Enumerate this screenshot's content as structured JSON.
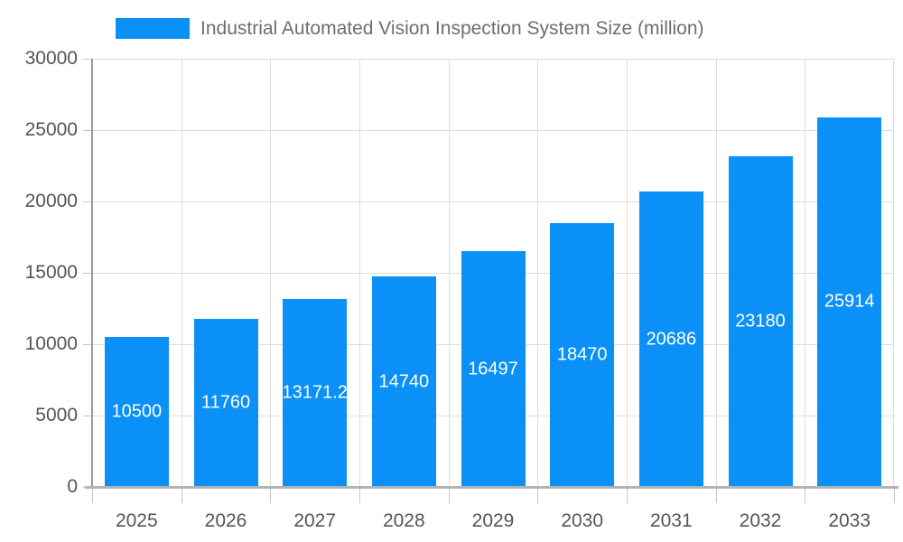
{
  "colors": {
    "background": "#ffffff",
    "bar": "#0b90f8",
    "bar_label": "#ffffff",
    "legend_text": "#6e6e6e",
    "tick_text": "#555555",
    "grid": "#dddddd",
    "tick": "#c4c4c4",
    "axis_y": "#999999",
    "axis_x": "#b3b3b3"
  },
  "chart_data": {
    "type": "bar",
    "title": "",
    "categories": [
      "2025",
      "2026",
      "2027",
      "2028",
      "2029",
      "2030",
      "2031",
      "2032",
      "2033"
    ],
    "series": [
      {
        "name": "Industrial Automated Vision Inspection System Size (million)",
        "values": [
          10500,
          11760,
          13171.2,
          14740,
          16497,
          18470,
          20686,
          23180,
          25914
        ],
        "labels": [
          "10500",
          "11760",
          "13171.2",
          "14740",
          "16497",
          "18470",
          "20686",
          "23180",
          "25914"
        ],
        "color": "#0b90f8"
      }
    ],
    "xlabel": "",
    "ylabel": "",
    "ylim": [
      0,
      30000
    ],
    "yticks": [
      0,
      5000,
      10000,
      15000,
      20000,
      25000,
      30000
    ],
    "grid": true,
    "legend_position": "top",
    "bar_label_position": "inside-center"
  }
}
